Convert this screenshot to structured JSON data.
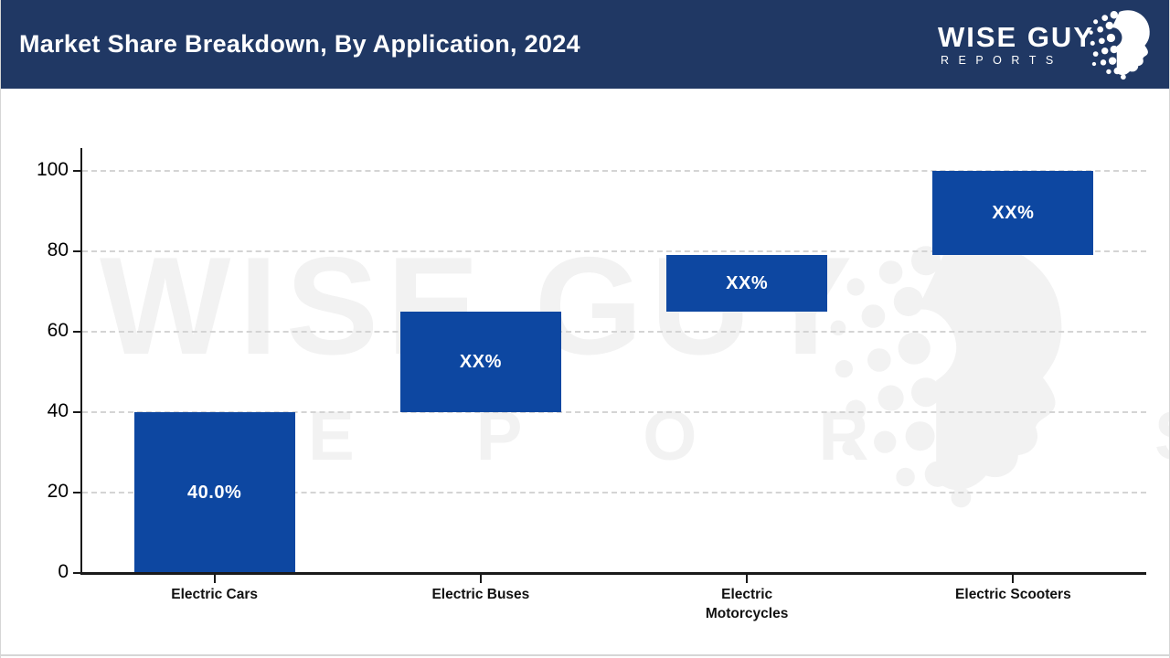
{
  "header": {
    "title": "Market Share Breakdown, By Application, 2024",
    "logo": {
      "line1": "WISE GUY",
      "line2": "REPORTS",
      "head_icon": "dotted-face-profile"
    }
  },
  "watermark": {
    "line1": "WISE GUY",
    "line2": "R E P O R T S"
  },
  "chart_data": {
    "type": "bar",
    "subtype": "waterfall",
    "title": "Market Share Breakdown, By Application, 2024",
    "categories": [
      "Electric Cars",
      "Electric Buses",
      "Electric Motorcycles",
      "Electric Scooters"
    ],
    "segments": [
      {
        "category": "Electric Cars",
        "start": 0,
        "end": 40,
        "value": 40.0,
        "label": "40.0%"
      },
      {
        "category": "Electric Buses",
        "start": 40,
        "end": 65,
        "value": 25,
        "label": "XX%"
      },
      {
        "category": "Electric Motorcycles",
        "start": 65,
        "end": 79,
        "value": 14,
        "label": "XX%"
      },
      {
        "category": "Electric Scooters",
        "start": 79,
        "end": 100,
        "value": 21,
        "label": "XX%"
      }
    ],
    "xlabel": "",
    "ylabel": "",
    "ylim": [
      0,
      100
    ],
    "yticks": [
      0,
      20,
      40,
      60,
      80,
      100
    ],
    "grid": {
      "horizontal": true,
      "style": "dashed"
    },
    "legend": "none",
    "bar_color": "#0d47a1",
    "bar_label_color": "#ffffff"
  },
  "colors": {
    "header_bg": "#203864",
    "title_text": "#ffffff",
    "bar": "#0d47a1",
    "grid": "#d4d4d4",
    "axis": "#1a1a1a",
    "tick_text": "#000000",
    "watermark": "#f2f2f2",
    "border": "#d6d6d6"
  }
}
